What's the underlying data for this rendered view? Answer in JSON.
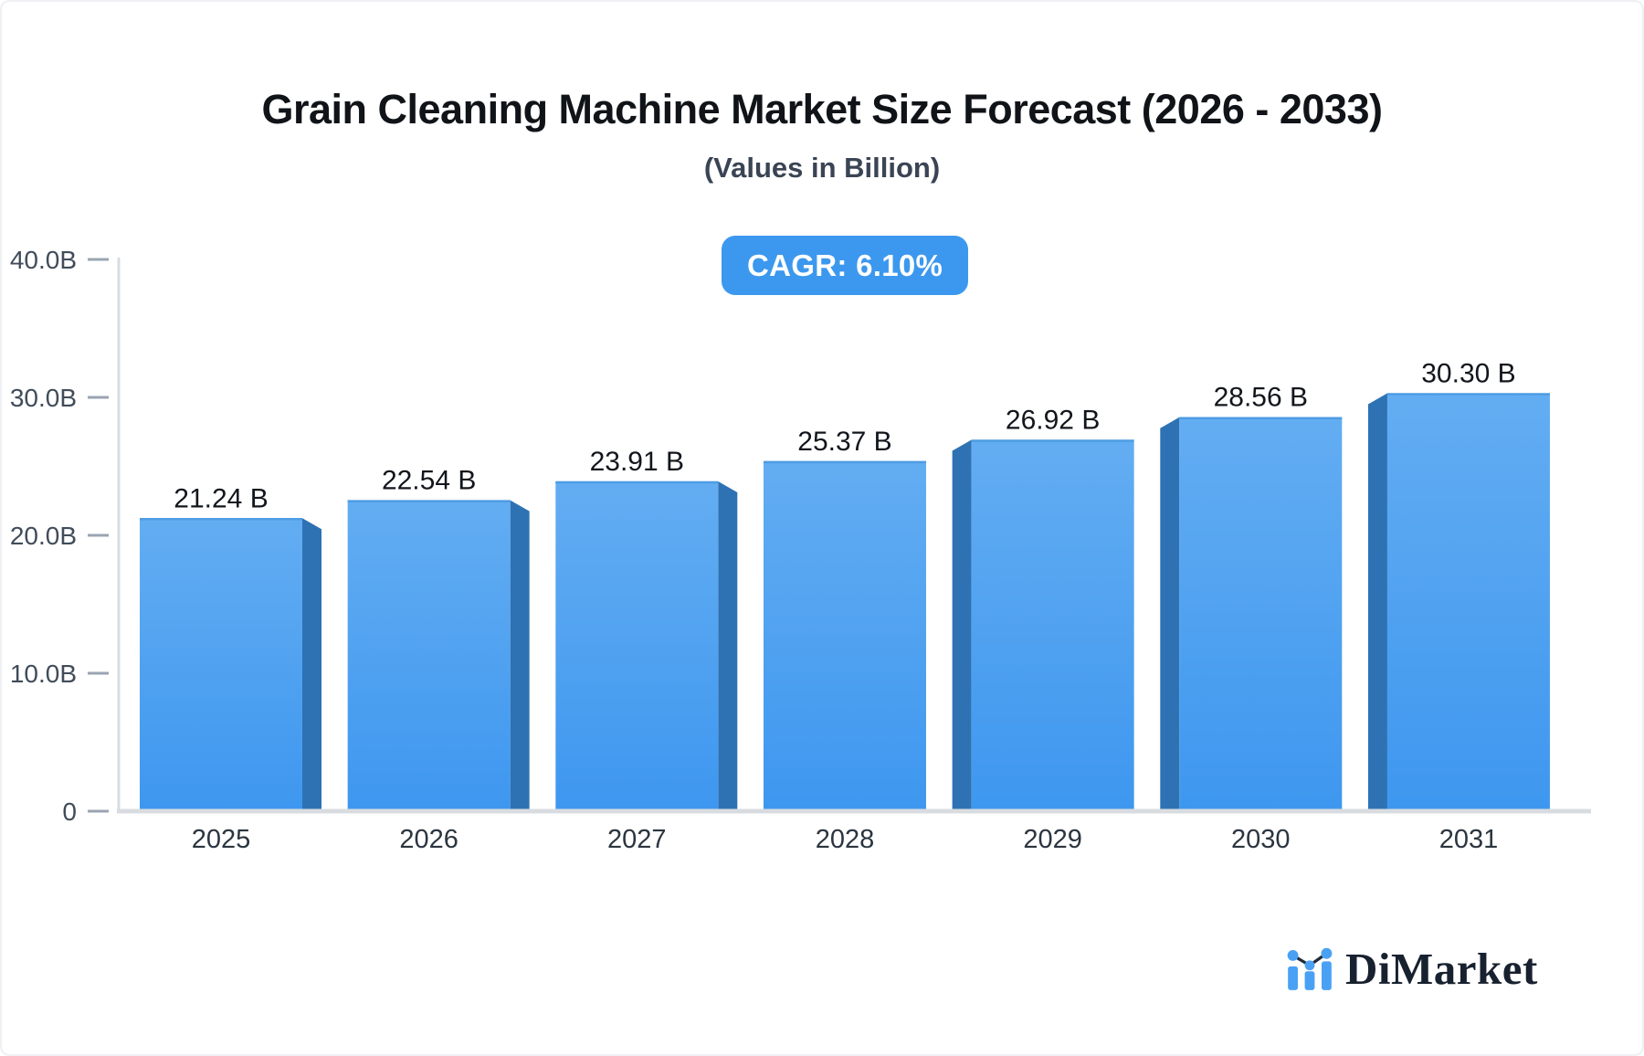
{
  "badge": {
    "label": "CAGR: 6.10%",
    "background": "#3c98ee",
    "text_color": "#ffffff"
  },
  "logo": {
    "brand": "DiMarket",
    "icon": "bar-line-chart-icon",
    "icon_color": "#4aa1f4",
    "line_color": "#1f2c3c",
    "text_color": "#18212f"
  },
  "chart_data": {
    "type": "bar",
    "title": "Grain Cleaning Machine Market Size Forecast (2026 - 2033)",
    "subtitle": "(Values in Billion)",
    "categories": [
      "2025",
      "2026",
      "2027",
      "2028",
      "2029",
      "2030",
      "2031"
    ],
    "values": [
      21.24,
      22.54,
      23.91,
      25.37,
      26.92,
      28.56,
      30.3
    ],
    "value_labels": [
      "21.24 B",
      "22.54 B",
      "23.91 B",
      "25.37 B",
      "26.92 B",
      "28.56 B",
      "30.30 B"
    ],
    "unit": "Billion",
    "ylim": [
      0,
      40
    ],
    "y_tick_values": [
      0,
      10,
      20,
      30,
      40
    ],
    "y_tick_labels": [
      "0",
      "10.0B",
      "20.0B",
      "30.0B",
      "40.0B"
    ],
    "grid": false,
    "legend": "none",
    "bar_style": "3d-extruded-toward-center",
    "colors": {
      "bar_face_top": "#63adf2",
      "bar_face_bottom": "#3e97ef",
      "bar_side": "#2e72b4",
      "bar_top_edge": "#4e9ce3",
      "axis_line": "#d8dce1",
      "tick_dash": "#9aa4b2",
      "tick_label": "#414c5a",
      "x_label": "#2b3540",
      "value_label": "#12161c"
    }
  }
}
